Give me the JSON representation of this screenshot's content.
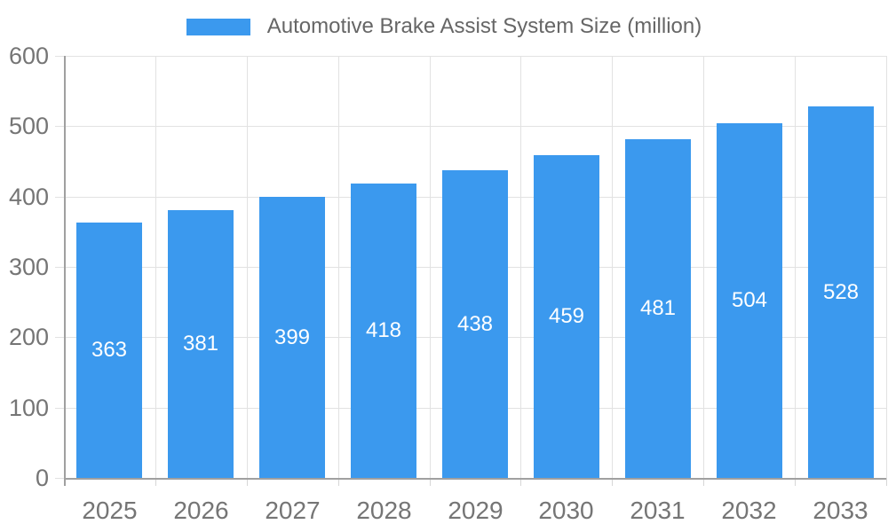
{
  "legend": {
    "label": "Automotive Brake Assist System Size (million)"
  },
  "chart_data": {
    "type": "bar",
    "title": "Automotive Brake Assist System Size (million)",
    "categories": [
      "2025",
      "2026",
      "2027",
      "2028",
      "2029",
      "2030",
      "2031",
      "2032",
      "2033"
    ],
    "values": [
      363,
      381,
      399,
      418,
      438,
      459,
      481,
      504,
      528
    ],
    "xlabel": "",
    "ylabel": "",
    "ylim": [
      0,
      600
    ],
    "yticks": [
      0,
      100,
      200,
      300,
      400,
      500,
      600
    ],
    "grid": true,
    "legend_position": "top-center",
    "value_labels": "inside-center-white",
    "colors": {
      "bar": "#3B99EE",
      "value_label": "#ffffff",
      "axis_label": "#757575",
      "title": "#666666",
      "gridline": "#e2e2e2",
      "axis_line": "#a0a0a0",
      "x_tick": "#d6d6d6",
      "background": "#ffffff"
    }
  }
}
